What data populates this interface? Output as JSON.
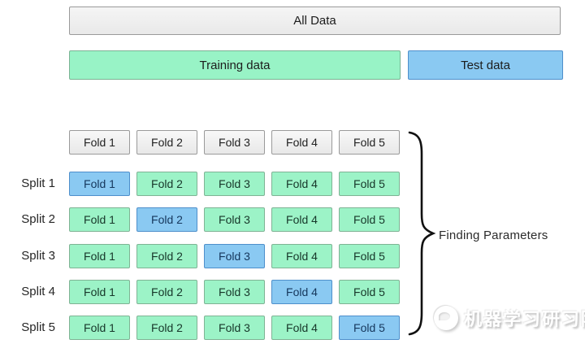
{
  "top_bars": {
    "all_data_label": "All Data",
    "training_label": "Training data",
    "test_label": "Test data"
  },
  "grid": {
    "header_folds": [
      "Fold 1",
      "Fold 2",
      "Fold 3",
      "Fold 4",
      "Fold 5"
    ],
    "splits": [
      {
        "label": "Split 1",
        "folds": [
          "Fold 1",
          "Fold 2",
          "Fold 3",
          "Fold 4",
          "Fold 5"
        ],
        "test_fold_index": 0
      },
      {
        "label": "Split 2",
        "folds": [
          "Fold 1",
          "Fold 2",
          "Fold 3",
          "Fold 4",
          "Fold 5"
        ],
        "test_fold_index": 1
      },
      {
        "label": "Split 3",
        "folds": [
          "Fold 1",
          "Fold 2",
          "Fold 3",
          "Fold 4",
          "Fold 5"
        ],
        "test_fold_index": 2
      },
      {
        "label": "Split 4",
        "folds": [
          "Fold 1",
          "Fold 2",
          "Fold 3",
          "Fold 4",
          "Fold 5"
        ],
        "test_fold_index": 3
      },
      {
        "label": "Split 5",
        "folds": [
          "Fold 1",
          "Fold 2",
          "Fold 3",
          "Fold 4",
          "Fold 5"
        ],
        "test_fold_index": 4
      }
    ]
  },
  "annotation": {
    "brace_label": "Finding Parameters"
  },
  "watermark": {
    "text": "机器学习研习院"
  },
  "colors": {
    "training_fill": "#98f3c6",
    "training_border": "#7bb394",
    "test_fill": "#8ac9f2",
    "test_border": "#4e8fcb",
    "neutral_fill": "#efefef",
    "neutral_border": "#9a9a9a",
    "brace_stroke": "#111111"
  }
}
